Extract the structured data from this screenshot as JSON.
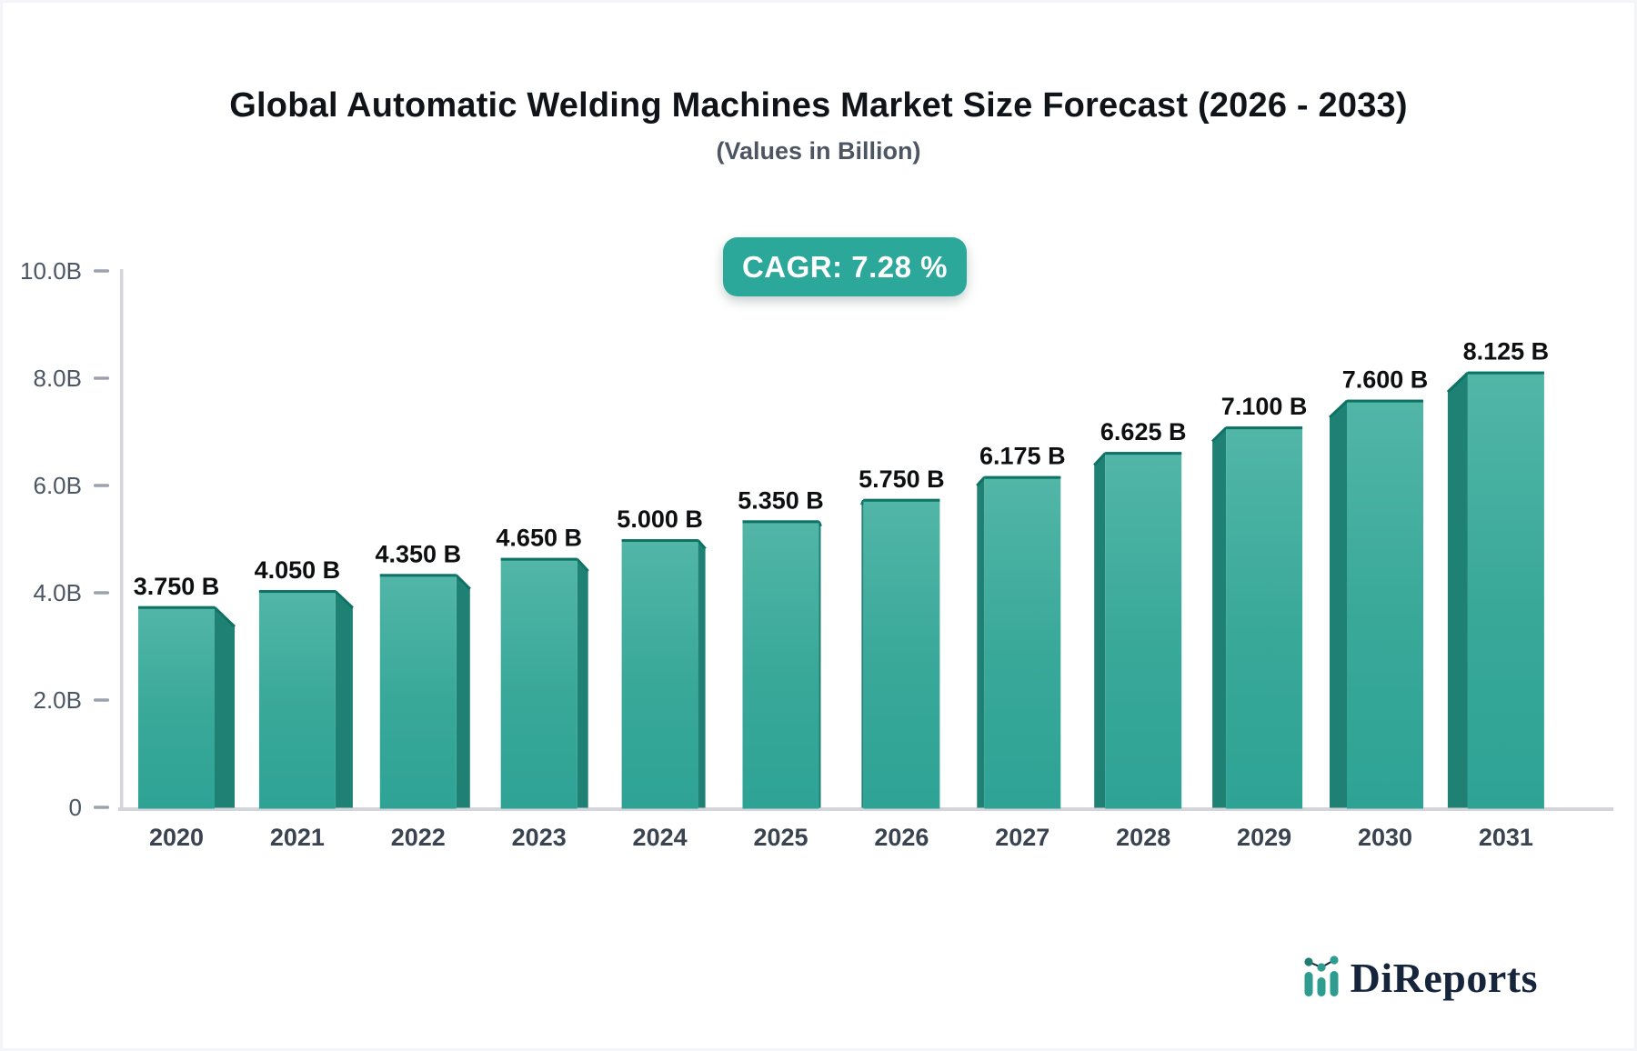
{
  "badge": {
    "label": "CAGR: 7.28 %"
  },
  "logo": {
    "text": "DiReports",
    "icon": "mini-bar-chart-icon"
  },
  "chart_data": {
    "type": "bar",
    "title": "Global Automatic Welding Machines Market Size Forecast (2026 - 2033)",
    "subtitle": "(Values in Billion)",
    "categories": [
      "2020",
      "2021",
      "2022",
      "2023",
      "2024",
      "2025",
      "2026",
      "2027",
      "2028",
      "2029",
      "2030",
      "2031"
    ],
    "values": [
      3.75,
      4.05,
      4.35,
      4.65,
      5.0,
      5.35,
      5.75,
      6.175,
      6.625,
      7.1,
      7.6,
      8.125
    ],
    "value_labels": [
      "3.750 B",
      "4.050 B",
      "4.350 B",
      "4.650 B",
      "5.000 B",
      "5.350 B",
      "5.750 B",
      "6.175 B",
      "6.625 B",
      "7.100 B",
      "7.600 B",
      "8.125 B"
    ],
    "xlabel": "",
    "ylabel": "",
    "ylim": [
      0,
      10
    ],
    "y_tick_values": [
      10,
      8,
      6,
      4,
      2,
      0
    ],
    "y_tick_labels": [
      "10.0B",
      "8.0B",
      "6.0B",
      "4.0B",
      "2.0B",
      "0"
    ],
    "grid": false,
    "legend": false,
    "style": "3d-extruded-bars-perspective-toward-center",
    "colors": {
      "bar_top": "#52B6A7",
      "bar_mid": "#38A899",
      "bar_bottom": "#2EA395",
      "bar_side": "#1E8174",
      "bar_edge": "#0E7265",
      "axis_line": "#D4D5DA",
      "tick_dash": "#9BA2AD",
      "tick_label": "#4B5564",
      "year_label": "#3A4450",
      "value_label": "#0D0F10",
      "badge_bg": "#2BA89A",
      "badge_text": "#FFFFFF",
      "logo_navy": "#16243C",
      "logo_teal": "#2E9C8F",
      "logo_teal_dark": "#1E7D73"
    }
  }
}
